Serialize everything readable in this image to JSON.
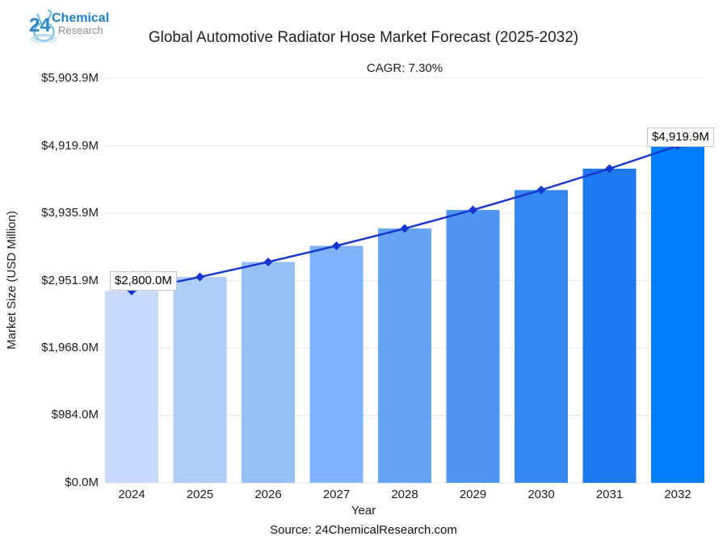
{
  "header": {
    "logo": {
      "number": "24",
      "name_top": "Chemical",
      "name_bottom": "Research"
    },
    "title": "Global Automotive Radiator Hose Market Forecast (2025-2032)",
    "cagr": "CAGR: 7.30%"
  },
  "chart_data": {
    "type": "bar",
    "overlay": "line",
    "title": "Global Automotive Radiator Hose Market Forecast (2025-2032)",
    "subtitle": "CAGR: 7.30%",
    "xlabel": "Year",
    "ylabel": "Market Size (USD Million)",
    "categories": [
      "2024",
      "2025",
      "2026",
      "2027",
      "2028",
      "2029",
      "2030",
      "2031",
      "2032"
    ],
    "values": [
      2800.0,
      3004.4,
      3223.7,
      3459.0,
      3711.6,
      3982.5,
      4273.2,
      4585.2,
      4919.9
    ],
    "ylim": [
      0,
      5903.9
    ],
    "grid": true,
    "legend": "none",
    "y_ticks": {
      "labels": [
        "$0.0M",
        "$984.0M",
        "$1,968.0M",
        "$2,951.9M",
        "$3,935.9M",
        "$4,919.9M",
        "$5,903.9M"
      ],
      "values": [
        0,
        984.0,
        1968.0,
        2951.9,
        3935.9,
        4919.9,
        5903.9
      ]
    },
    "annotations": [
      {
        "category": "2024",
        "label": "$2,800.0M",
        "anchor": "first"
      },
      {
        "category": "2032",
        "label": "$4,919.9M",
        "anchor": "last"
      }
    ],
    "colors": {
      "bars": [
        "#c7dafb",
        "#aecdf9",
        "#96bff8",
        "#7eb1f7",
        "#66a3f5",
        "#4e95f4",
        "#3687f3",
        "#1e79f1",
        "#0080fb"
      ],
      "line": "#1535cf",
      "gridline": "#e7e7e7",
      "annotation_border": "#c4c4c4"
    }
  },
  "footer": {
    "source": "Source: 24ChemicalResearch.com"
  }
}
